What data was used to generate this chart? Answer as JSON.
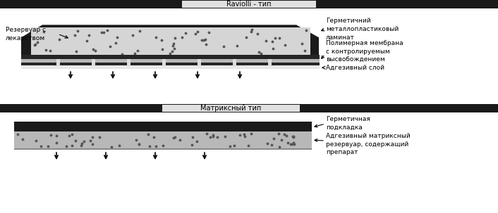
{
  "title1": "Raviolli - тип",
  "title2": "Матриксный тип",
  "label_reservoir": "Резервуар с\nлекарством",
  "label_laminate": "Герметичний\nметаллопластиковый\nламинат",
  "label_membrane": "Полимерная мембрана\nс контролируемым\nвысвобождением",
  "label_adhesive": "Адгезивный слой",
  "label_backing": "Герметичная\nподкладка",
  "label_matrix": "Адгезивный матриксный\nрезервуар, содержащий\nпрепарат",
  "bg_color": "#ffffff",
  "dark_gray": "#1a1a1a",
  "header_text_bg": "#e0e0e0"
}
